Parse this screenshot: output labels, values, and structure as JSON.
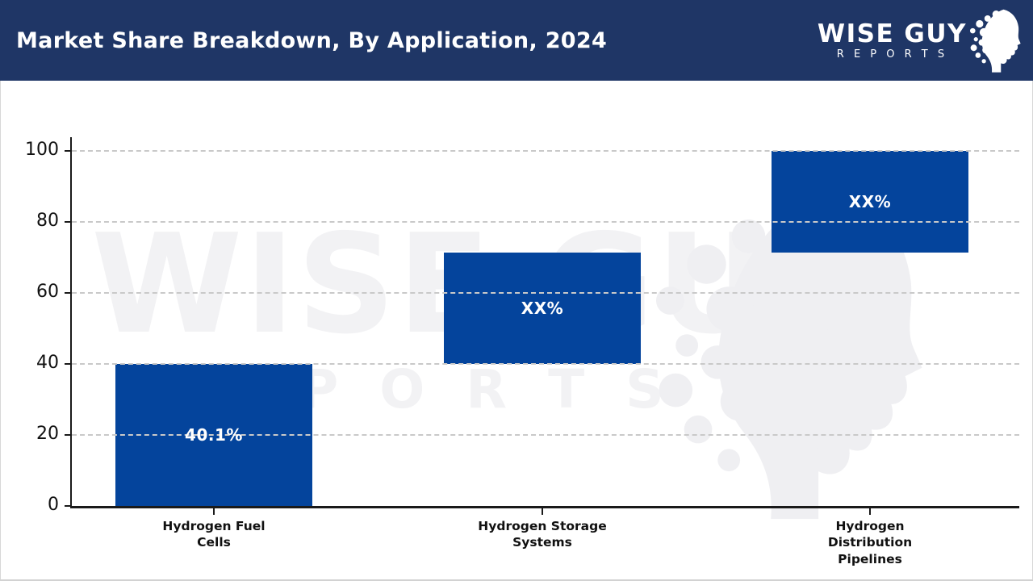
{
  "header": {
    "title": "Market Share Breakdown, By Application, 2024",
    "logo": {
      "line1": "WISE GUY",
      "line2": "R E P O R T S"
    }
  },
  "watermark": {
    "line1": "WISE GUY",
    "line2": "R E P O R T S"
  },
  "chart_data": {
    "type": "bar",
    "subtype": "segmented-waterfall",
    "title": "Market Share Breakdown, By Application, 2024",
    "categories": [
      "Hydrogen Fuel Cells",
      "Hydrogen Storage Systems",
      "Hydrogen Distribution Pipelines"
    ],
    "category_label_lines": [
      [
        "Hydrogen Fuel",
        "Cells"
      ],
      [
        "Hydrogen Storage",
        "Systems"
      ],
      [
        "Hydrogen",
        "Distribution",
        "Pipelines"
      ]
    ],
    "segments": [
      {
        "category": "Hydrogen Fuel Cells",
        "start": 0,
        "end": 40.1,
        "value_label": "40.1%"
      },
      {
        "category": "Hydrogen Storage Systems",
        "start": 40.1,
        "end": 71.4,
        "value_label": "XX%"
      },
      {
        "category": "Hydrogen Distribution Pipelines",
        "start": 71.4,
        "end": 100,
        "value_label": "XX%"
      }
    ],
    "xlabel": "",
    "ylabel": "",
    "y_ticks": [
      0,
      20,
      40,
      60,
      80,
      100
    ],
    "ylim": [
      0,
      104
    ],
    "grid": "horizontal-dashed",
    "legend": "none",
    "bar_color": "#04449c",
    "value_label_color": "#ffffff"
  },
  "colors": {
    "header_bg": "#1f3666",
    "bar": "#04449c",
    "grid": "#c9c9c9",
    "axis": "#1a1a1a",
    "text": "#111111",
    "watermark": "#f2f2f4"
  }
}
